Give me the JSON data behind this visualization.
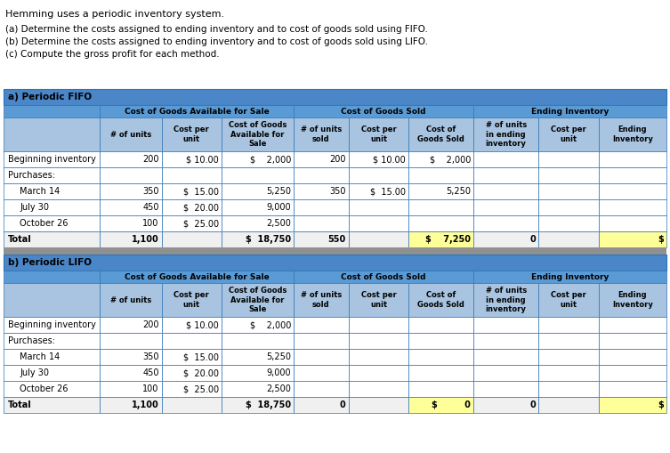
{
  "title_text": "Hemming uses a periodic inventory system.",
  "sub_texts": [
    "(a) Determine the costs assigned to ending inventory and to cost of goods sold using FIFO.",
    "(b) Determine the costs assigned to ending inventory and to cost of goods sold using LIFO.",
    "(c) Compute the gross profit for each method."
  ],
  "section_a_label": "a) Periodic FIFO",
  "section_b_label": "b) Periodic LIFO",
  "header_bg": "#5b9bd5",
  "section_header_bg": "#4a86c8",
  "subheader_bg": "#a8c4e0",
  "highlight_yellow": "#ffff99",
  "border_color": "#2e74b5",
  "separator_color": "#808080",
  "col_headers": [
    "# of units",
    "Cost per\nunit",
    "Cost of Goods\nAvailable for\nSale",
    "# of units\nsold",
    "Cost per\nunit",
    "Cost of\nGoods Sold",
    "# of units\nin ending\ninventory",
    "Cost per\nunit",
    "Ending\nInventory"
  ],
  "col_group_labels": [
    "Cost of Goods Available for Sale",
    "Cost of Goods Sold",
    "Ending Inventory"
  ],
  "rows_a": [
    {
      "label": "Beginning inventory",
      "indent": false,
      "is_total": false,
      "cells": [
        "200",
        "$ 10.00",
        "$    2,000",
        "200",
        "$ 10.00",
        "$    2,000",
        "",
        "",
        ""
      ]
    },
    {
      "label": "Purchases:",
      "indent": false,
      "is_total": false,
      "cells": [
        "",
        "",
        "",
        "",
        "",
        "",
        "",
        "",
        ""
      ]
    },
    {
      "label": "March 14",
      "indent": true,
      "is_total": false,
      "cells": [
        "350",
        "$  15.00",
        "5,250",
        "350",
        "$  15.00",
        "5,250",
        "",
        "",
        ""
      ]
    },
    {
      "label": "July 30",
      "indent": true,
      "is_total": false,
      "cells": [
        "450",
        "$  20.00",
        "9,000",
        "",
        "",
        "",
        "",
        "",
        ""
      ]
    },
    {
      "label": "October 26",
      "indent": true,
      "is_total": false,
      "cells": [
        "100",
        "$  25.00",
        "2,500",
        "",
        "",
        "",
        "",
        "",
        ""
      ]
    },
    {
      "label": "Total",
      "indent": false,
      "is_total": true,
      "cells": [
        "1,100",
        "",
        "$  18,750",
        "550",
        "",
        "$    7,250",
        "0",
        "",
        "$"
      ]
    }
  ],
  "rows_b": [
    {
      "label": "Beginning inventory",
      "indent": false,
      "is_total": false,
      "cells": [
        "200",
        "$ 10.00",
        "$    2,000",
        "",
        "",
        "",
        "",
        "",
        ""
      ]
    },
    {
      "label": "Purchases:",
      "indent": false,
      "is_total": false,
      "cells": [
        "",
        "",
        "",
        "",
        "",
        "",
        "",
        "",
        ""
      ]
    },
    {
      "label": "March 14",
      "indent": true,
      "is_total": false,
      "cells": [
        "350",
        "$  15.00",
        "5,250",
        "",
        "",
        "",
        "",
        "",
        ""
      ]
    },
    {
      "label": "July 30",
      "indent": true,
      "is_total": false,
      "cells": [
        "450",
        "$  20.00",
        "9,000",
        "",
        "",
        "",
        "",
        "",
        ""
      ]
    },
    {
      "label": "October 26",
      "indent": true,
      "is_total": false,
      "cells": [
        "100",
        "$  25.00",
        "2,500",
        "",
        "",
        "",
        "",
        "",
        ""
      ]
    },
    {
      "label": "Total",
      "indent": false,
      "is_total": true,
      "cells": [
        "1,100",
        "",
        "$  18,750",
        "0",
        "",
        "$         0",
        "0",
        "",
        "$"
      ]
    }
  ],
  "yellow_cols_total": [
    5,
    8
  ]
}
